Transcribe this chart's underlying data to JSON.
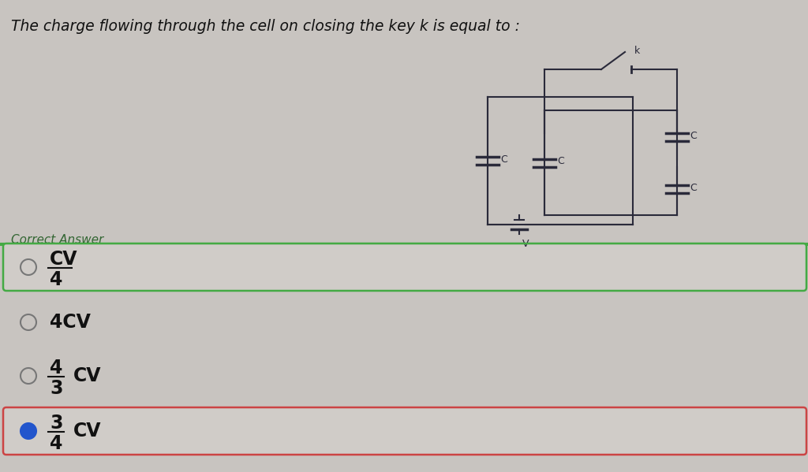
{
  "title": "The charge flowing through the cell on closing the key k is equal to :",
  "bg_color": "#c8c4c0",
  "text_color": "#111111",
  "line_color": "#2a2a3a",
  "correct_answer_label": "Correct Answer",
  "correct_label_color": "#336633",
  "options": [
    {
      "type": "fraction",
      "num": "CV",
      "den": "4",
      "selected": false,
      "correct": true
    },
    {
      "type": "plain",
      "text": "4CV",
      "selected": false,
      "correct": false
    },
    {
      "type": "frac_sfx",
      "num": "4",
      "den": "3",
      "sfx": "CV",
      "selected": false,
      "correct": false
    },
    {
      "type": "frac_sfx",
      "num": "3",
      "den": "4",
      "sfx": "CV",
      "selected": true,
      "correct": false
    }
  ],
  "green_line_color": "#44aa44",
  "red_border_color": "#cc4444",
  "option_bg": "#ccc8c4",
  "selected_dot_color": "#2255cc",
  "empty_dot_color": "#777777"
}
